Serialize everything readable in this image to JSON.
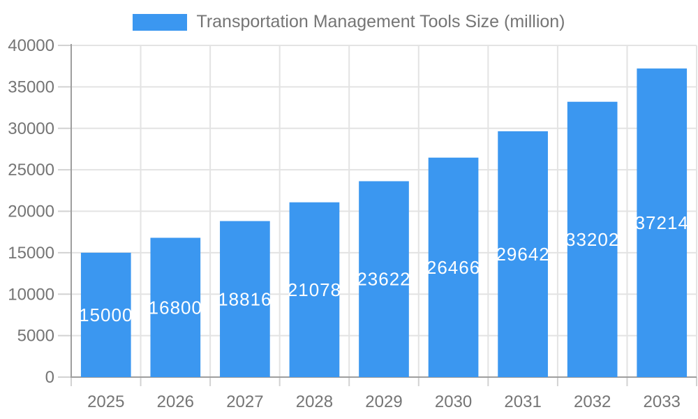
{
  "chart_data": {
    "type": "bar",
    "title": "Transportation Management Tools Size (million)",
    "series_name": "Transportation Management Tools Size (million)",
    "categories": [
      "2025",
      "2026",
      "2027",
      "2028",
      "2029",
      "2030",
      "2031",
      "2032",
      "2033"
    ],
    "values": [
      15000,
      16800,
      18816,
      21078,
      23622,
      26466,
      29642,
      33202,
      37214
    ],
    "xlabel": "",
    "ylabel": "",
    "ylim": [
      0,
      40000
    ],
    "ytick_step": 5000,
    "ytick_labels": [
      "0",
      "5000",
      "10000",
      "15000",
      "20000",
      "25000",
      "30000",
      "35000",
      "40000"
    ],
    "grid": true,
    "legend_position": "top-center",
    "value_labels": "centered-inside-bars"
  },
  "colors": {
    "bar": "#3b97f0",
    "title_text": "#757575",
    "axis_text": "#757575",
    "grid_line": "#e3e3e3",
    "axis_line": "#9e9e9e",
    "tick_mark": "#d2d2d2",
    "value_label": "#ffffff",
    "background": "#ffffff"
  }
}
